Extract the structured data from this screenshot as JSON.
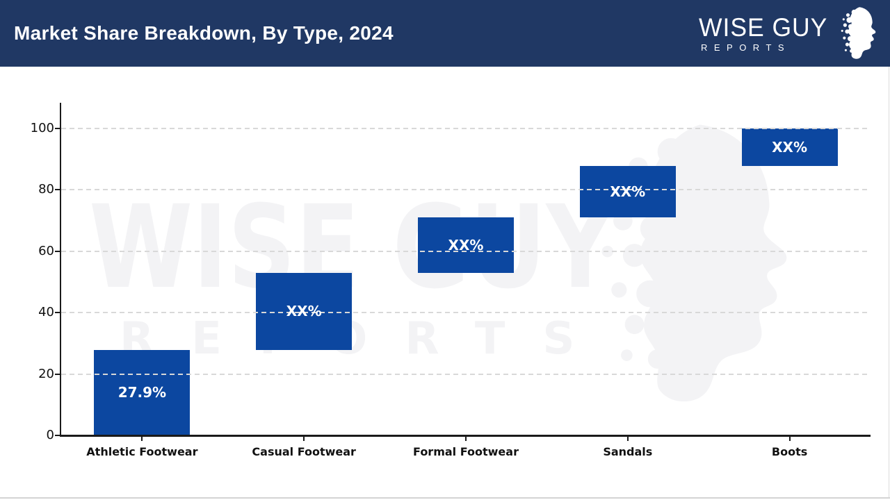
{
  "header": {
    "title": "Market Share Breakdown, By Type, 2024",
    "logo": {
      "name": "WISE GUY",
      "tagline": "REPORTS"
    }
  },
  "watermark": {
    "wordmark": "WISE GUY",
    "tagline": "REPORTS"
  },
  "colors": {
    "header_bg": "#203864",
    "bar_blue": "#0c47a0",
    "watermark_gray": "#f3f3f5",
    "grid_gray": "#d8d8d8",
    "axis_black": "#1a1a1a"
  },
  "chart_data": {
    "type": "bar",
    "subtype": "floating-waterfall",
    "title": "Market Share Breakdown, By Type, 2024",
    "categories": [
      "Athletic Footwear",
      "Casual Footwear",
      "Formal Footwear",
      "Sandals",
      "Boots"
    ],
    "segments": [
      {
        "category": "Athletic Footwear",
        "start": 0,
        "end": 27.9,
        "label": "27.9%"
      },
      {
        "category": "Casual Footwear",
        "start": 27.9,
        "end": 52.9,
        "label": "XX%"
      },
      {
        "category": "Formal Footwear",
        "start": 52.9,
        "end": 71.0,
        "label": "XX%"
      },
      {
        "category": "Sandals",
        "start": 71.0,
        "end": 87.7,
        "label": "XX%"
      },
      {
        "category": "Boots",
        "start": 87.7,
        "end": 100,
        "label": "XX%"
      }
    ],
    "xlabel": "",
    "ylabel": "",
    "ylim": [
      0,
      100
    ],
    "yticks": [
      0,
      20,
      40,
      60,
      80,
      100
    ],
    "grid": {
      "horizontal": true,
      "style": "dashed",
      "color": "#d8d8d8",
      "drawn_above_bars": true
    },
    "legend": null,
    "bar_color": "#0c47a0",
    "bar_label_color": "#ffffff"
  }
}
